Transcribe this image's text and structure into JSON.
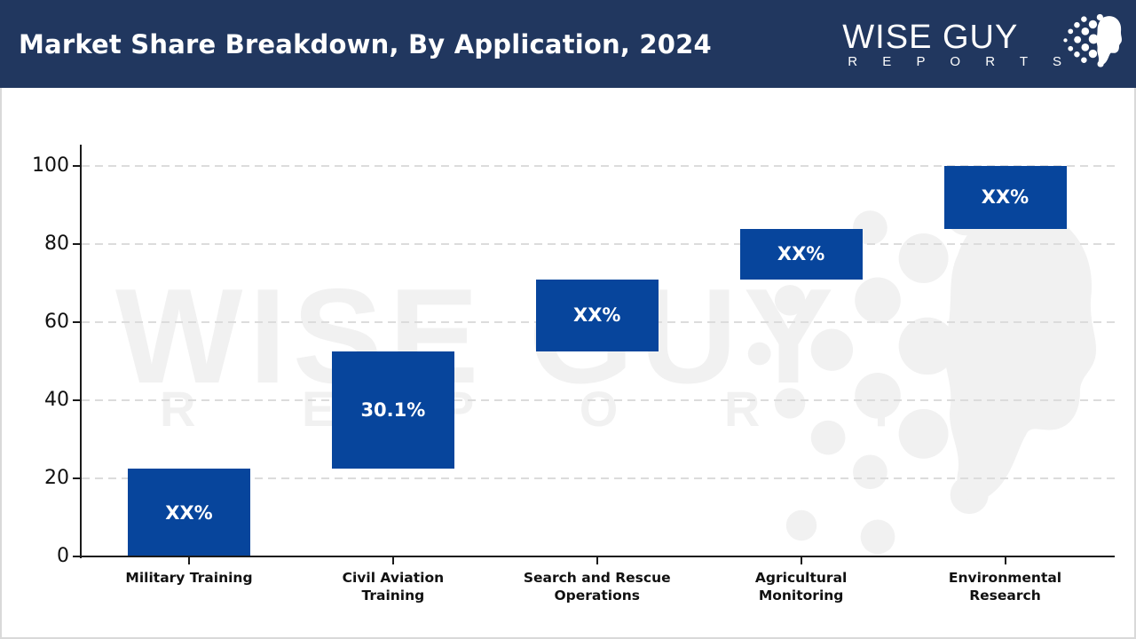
{
  "header": {
    "title": "Market Share Breakdown, By Application, 2024",
    "logo": {
      "line1": "WISE GUY",
      "line2": "R E P O R T S",
      "icon": "face-dots-icon"
    }
  },
  "watermark": {
    "line1": "WISE GUY",
    "line2": "R E P O R T S"
  },
  "colors": {
    "header_bg": "#21375f",
    "bar": "#07459c",
    "axis": "#1a1a1a",
    "grid": "#dcdcdc",
    "tick_text": "#111111",
    "watermark": "#f1f1f1",
    "value_label": "#ffffff"
  },
  "chart_data": {
    "type": "bar",
    "subtype": "waterfall",
    "title": "Market Share Breakdown, By Application, 2024",
    "xlabel": "",
    "ylabel": "",
    "ylim": [
      0,
      100
    ],
    "yticks": [
      0,
      20,
      40,
      60,
      80,
      100
    ],
    "grid": "horizontal-dashed",
    "legend": "none",
    "bar_color": "#07459c",
    "segments": [
      {
        "category": "Military Training",
        "label_lines": [
          "Military Training"
        ],
        "start": 0,
        "end": 22.5,
        "value": 22.5,
        "value_label": "XX%"
      },
      {
        "category": "Civil Aviation Training",
        "label_lines": [
          "Civil Aviation",
          "Training"
        ],
        "start": 22.5,
        "end": 52.6,
        "value": 30.1,
        "value_label": "30.1%"
      },
      {
        "category": "Search and Rescue Operations",
        "label_lines": [
          "Search and Rescue",
          "Operations"
        ],
        "start": 52.6,
        "end": 70.9,
        "value": 18.3,
        "value_label": "XX%"
      },
      {
        "category": "Agricultural Monitoring",
        "label_lines": [
          "Agricultural",
          "Monitoring"
        ],
        "start": 70.9,
        "end": 83.9,
        "value": 13.0,
        "value_label": "XX%"
      },
      {
        "category": "Environmental Research",
        "label_lines": [
          "Environmental",
          "Research"
        ],
        "start": 83.9,
        "end": 100.0,
        "value": 16.1,
        "value_label": "XX%"
      }
    ]
  }
}
